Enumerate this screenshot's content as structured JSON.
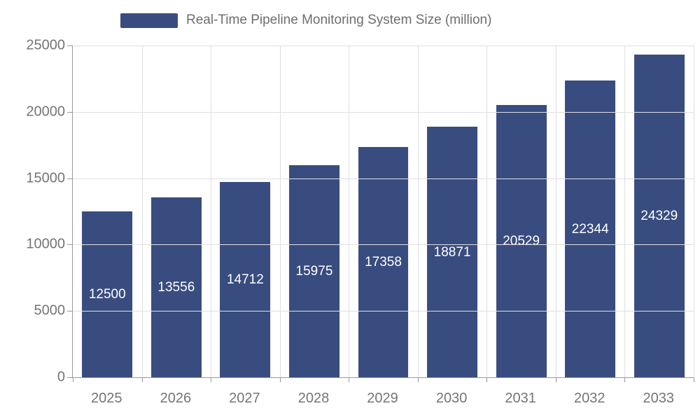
{
  "chart_data": {
    "type": "bar",
    "title": "Real-Time Pipeline Monitoring System Size (million)",
    "categories": [
      "2025",
      "2026",
      "2027",
      "2028",
      "2029",
      "2030",
      "2031",
      "2032",
      "2033"
    ],
    "values": [
      12500,
      13556,
      14712,
      15975,
      17358,
      18871,
      20529,
      22344,
      24329
    ],
    "xlabel": "",
    "ylabel": "",
    "ylim": [
      0,
      25000
    ],
    "y_ticks": [
      0,
      5000,
      10000,
      15000,
      20000,
      25000
    ],
    "grid": true,
    "legend_position": "top",
    "colors": {
      "bar": "#394C7F",
      "bar_label": "#ffffff",
      "axis_text": "#757575",
      "legend_text": "#6e6e6e",
      "gridline": "#e0e0e0",
      "axis_line": "#999999",
      "background": "#ffffff"
    }
  }
}
